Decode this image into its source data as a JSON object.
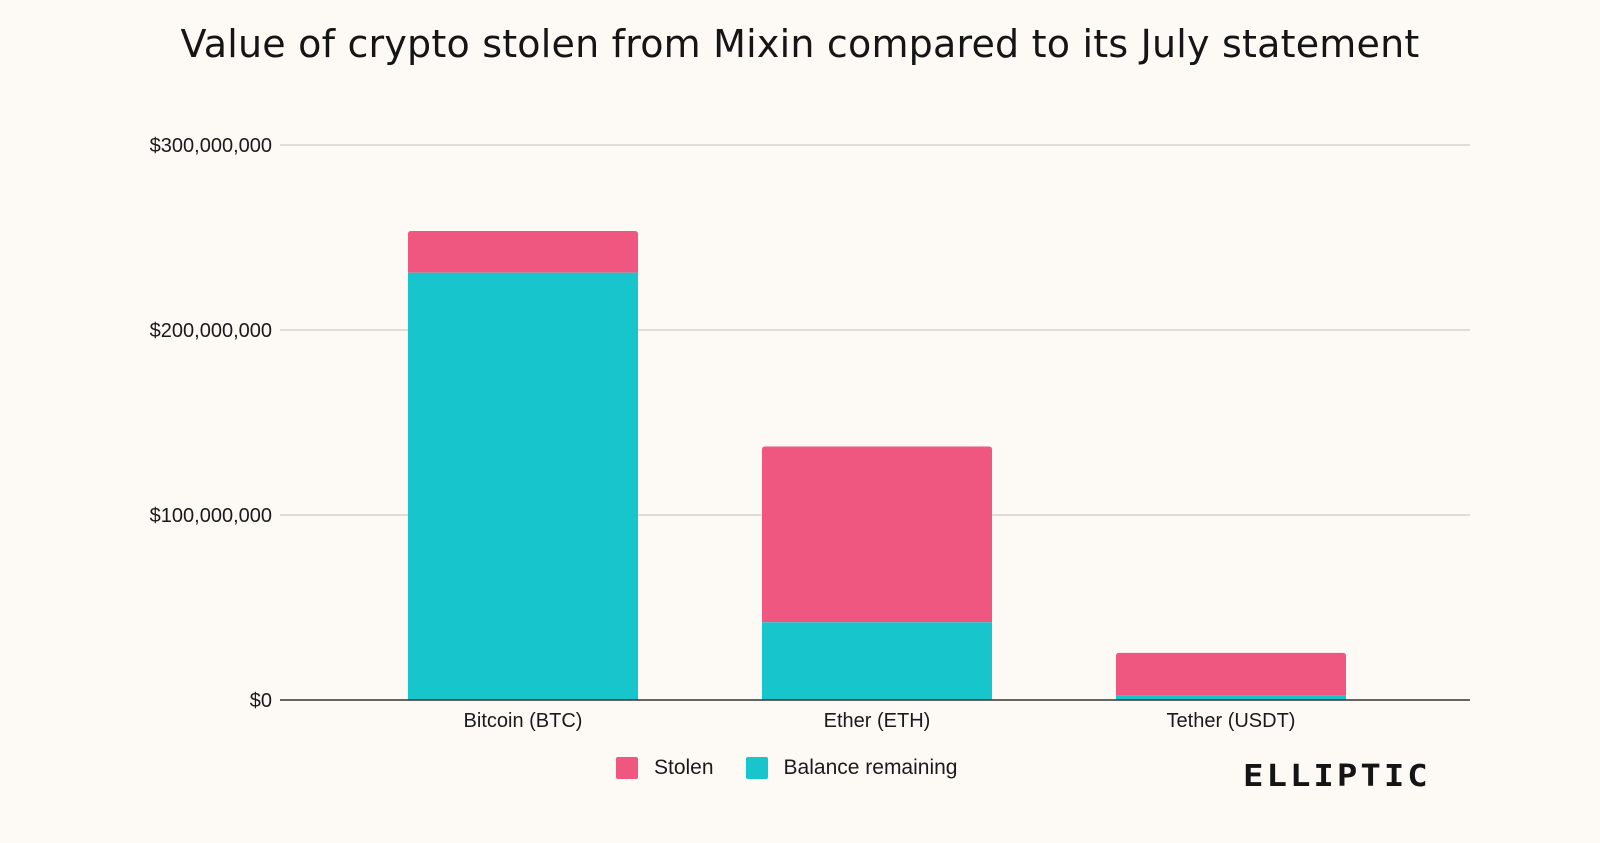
{
  "colors": {
    "stolen": "#f05780",
    "balance": "#17c5cd",
    "grid": "#d6d3d0",
    "axis": "#333333",
    "background": "#fdf9f5"
  },
  "brand": "ELLIPTIC",
  "chart_data": {
    "type": "bar",
    "stacked": true,
    "title": "Value of crypto stolen from Mixin compared to its July statement",
    "xlabel": "",
    "ylabel": "",
    "categories": [
      "Bitcoin (BTC)",
      "Ether (ETH)",
      "Tether (USDT)"
    ],
    "series": [
      {
        "name": "Balance remaining",
        "values": [
          231000000,
          42000000,
          2500000
        ],
        "color": "#17c5cd"
      },
      {
        "name": "Stolen",
        "values": [
          22500000,
          95000000,
          23000000
        ],
        "color": "#f05780"
      }
    ],
    "ylim": [
      0,
      300000000
    ],
    "yticks": [
      0,
      100000000,
      200000000,
      300000000
    ],
    "ytick_labels": [
      "$0",
      "$100,000,000",
      "$200,000,000",
      "$300,000,000"
    ],
    "legend": {
      "placement": "bottom-center",
      "order": [
        "Stolen",
        "Balance remaining"
      ]
    },
    "grid": true
  }
}
